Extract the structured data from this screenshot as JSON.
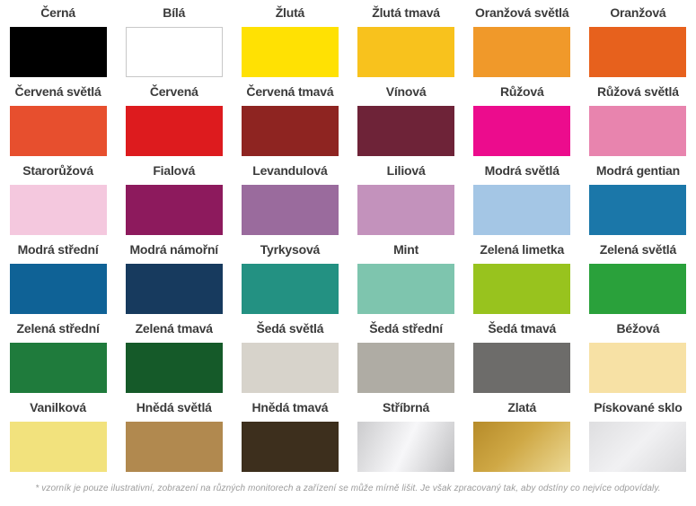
{
  "palette": {
    "label_color": "#3b3b3b",
    "footnote": "* vzorník je pouze ilustrativní, zobrazení na různých monitorech a zařízení se může mírně lišit. Je však zpracovaný tak, aby odstíny co nejvíce odpovídaly.",
    "footnote_color": "#9b9b9b",
    "swatches": [
      {
        "name": "Černá",
        "background": "#000000"
      },
      {
        "name": "Bílá",
        "background": "#ffffff",
        "bordered": true
      },
      {
        "name": "Žlutá",
        "background": "#ffe103"
      },
      {
        "name": "Žlutá tmavá",
        "background": "#f8c21d"
      },
      {
        "name": "Oranžová světlá",
        "background": "#f0992a"
      },
      {
        "name": "Oranžová",
        "background": "#e7611d"
      },
      {
        "name": "Červená světlá",
        "background": "#e74f2e"
      },
      {
        "name": "Červená",
        "background": "#dd1b1e"
      },
      {
        "name": "Červená tmavá",
        "background": "#8e2421"
      },
      {
        "name": "Vínová",
        "background": "#6e2338"
      },
      {
        "name": "Růžová",
        "background": "#ec0c8d"
      },
      {
        "name": "Růžová světlá",
        "background": "#e884ae"
      },
      {
        "name": "Starorůžová",
        "background": "#f4c8de"
      },
      {
        "name": "Fialová",
        "background": "#8d1a5d"
      },
      {
        "name": "Levandulová",
        "background": "#9a6b9d"
      },
      {
        "name": "Liliová",
        "background": "#c392bc"
      },
      {
        "name": "Modrá světlá",
        "background": "#a4c6e5"
      },
      {
        "name": "Modrá gentian",
        "background": "#1b77a9"
      },
      {
        "name": "Modrá střední",
        "background": "#0f6296"
      },
      {
        "name": "Modrá námořní",
        "background": "#173a5e"
      },
      {
        "name": "Tyrkysová",
        "background": "#239182"
      },
      {
        "name": "Mint",
        "background": "#7ec5ae"
      },
      {
        "name": "Zelená limetka",
        "background": "#98c31e"
      },
      {
        "name": "Zelená světlá",
        "background": "#2aa13b"
      },
      {
        "name": "Zelená střední",
        "background": "#1f7b3c"
      },
      {
        "name": "Zelená tmavá",
        "background": "#155a29"
      },
      {
        "name": "Šedá světlá",
        "background": "#d7d3cb"
      },
      {
        "name": "Šedá střední",
        "background": "#afaca4"
      },
      {
        "name": "Šedá tmavá",
        "background": "#6d6c6a"
      },
      {
        "name": "Béžová",
        "background": "#f7e1a5"
      },
      {
        "name": "Vanilková",
        "background": "#f2e27d"
      },
      {
        "name": "Hnědá světlá",
        "background": "#b1894f"
      },
      {
        "name": "Hnědá tmavá",
        "background": "#3d2f1d"
      },
      {
        "name": "Stříbrná",
        "background": "linear-gradient(115deg, #cbcbcd 0%, #f7f7f9 50%, #bfbfc1 100%)"
      },
      {
        "name": "Zlatá",
        "background": "linear-gradient(135deg, #b68b29 0%, #cfa845 45%, #ecd995 100%)"
      },
      {
        "name": "Pískované sklo",
        "background": "linear-gradient(135deg, #dedee0 0%, #f1f1f3 50%, #d8d8da 100%)"
      }
    ]
  }
}
